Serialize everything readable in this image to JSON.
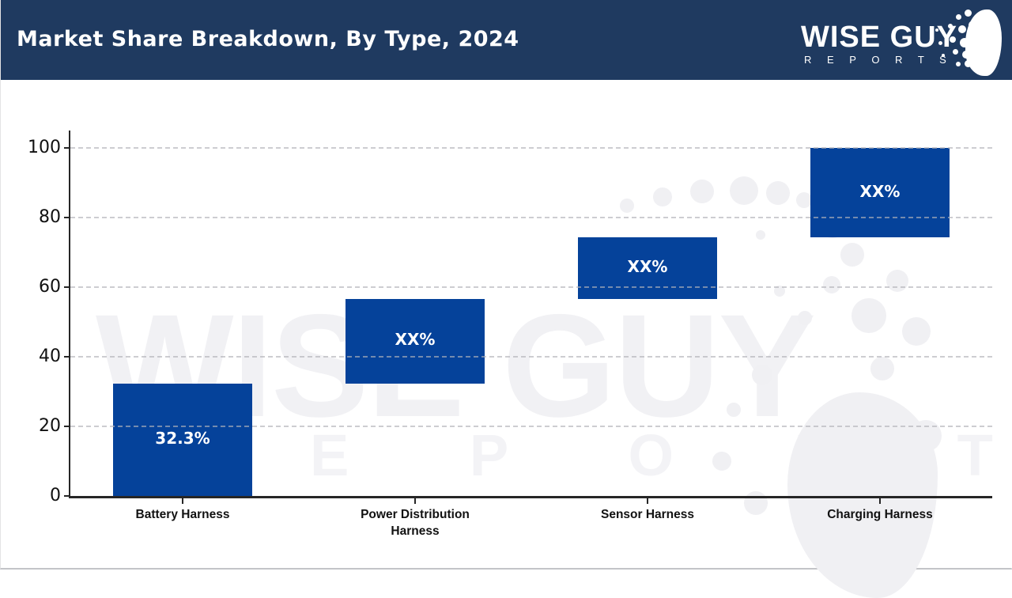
{
  "header": {
    "title": "Market Share Breakdown, By Type, 2024",
    "logo": {
      "wordmark": "WISE GUY",
      "sub": "R E P O R T S"
    },
    "colors": {
      "background": "#1f3a60",
      "text": "#ffffff"
    }
  },
  "watermark": {
    "wordmark": "WISE GUY",
    "sub": "R E P O R T S"
  },
  "chart_data": {
    "type": "bar",
    "variant": "waterfall",
    "title": "Market Share Breakdown, By Type, 2024",
    "categories": [
      "Battery Harness",
      "Power Distribution Harness",
      "Sensor Harness",
      "Charging Harness"
    ],
    "series": [
      {
        "name": "Market share (%)",
        "segments": [
          {
            "start": 0,
            "end": 32.3
          },
          {
            "start": 32.3,
            "end": 56.6
          },
          {
            "start": 56.6,
            "end": 74.3
          },
          {
            "start": 74.3,
            "end": 100
          }
        ],
        "labels": [
          "32.3%",
          "XX%",
          "XX%",
          "XX%"
        ]
      }
    ],
    "xlabel": "",
    "ylabel": "",
    "ylim": [
      0,
      105
    ],
    "yticks": [
      0,
      20,
      40,
      60,
      80,
      100
    ],
    "grid": {
      "horizontal": true,
      "style": "dashed"
    },
    "legend": "none",
    "colors": {
      "bar": "#05429a",
      "bar_label_text": "#ffffff",
      "grid": "#cccccc",
      "axis": "#262626",
      "tick_text": "#111111",
      "background": "#ffffff"
    }
  }
}
